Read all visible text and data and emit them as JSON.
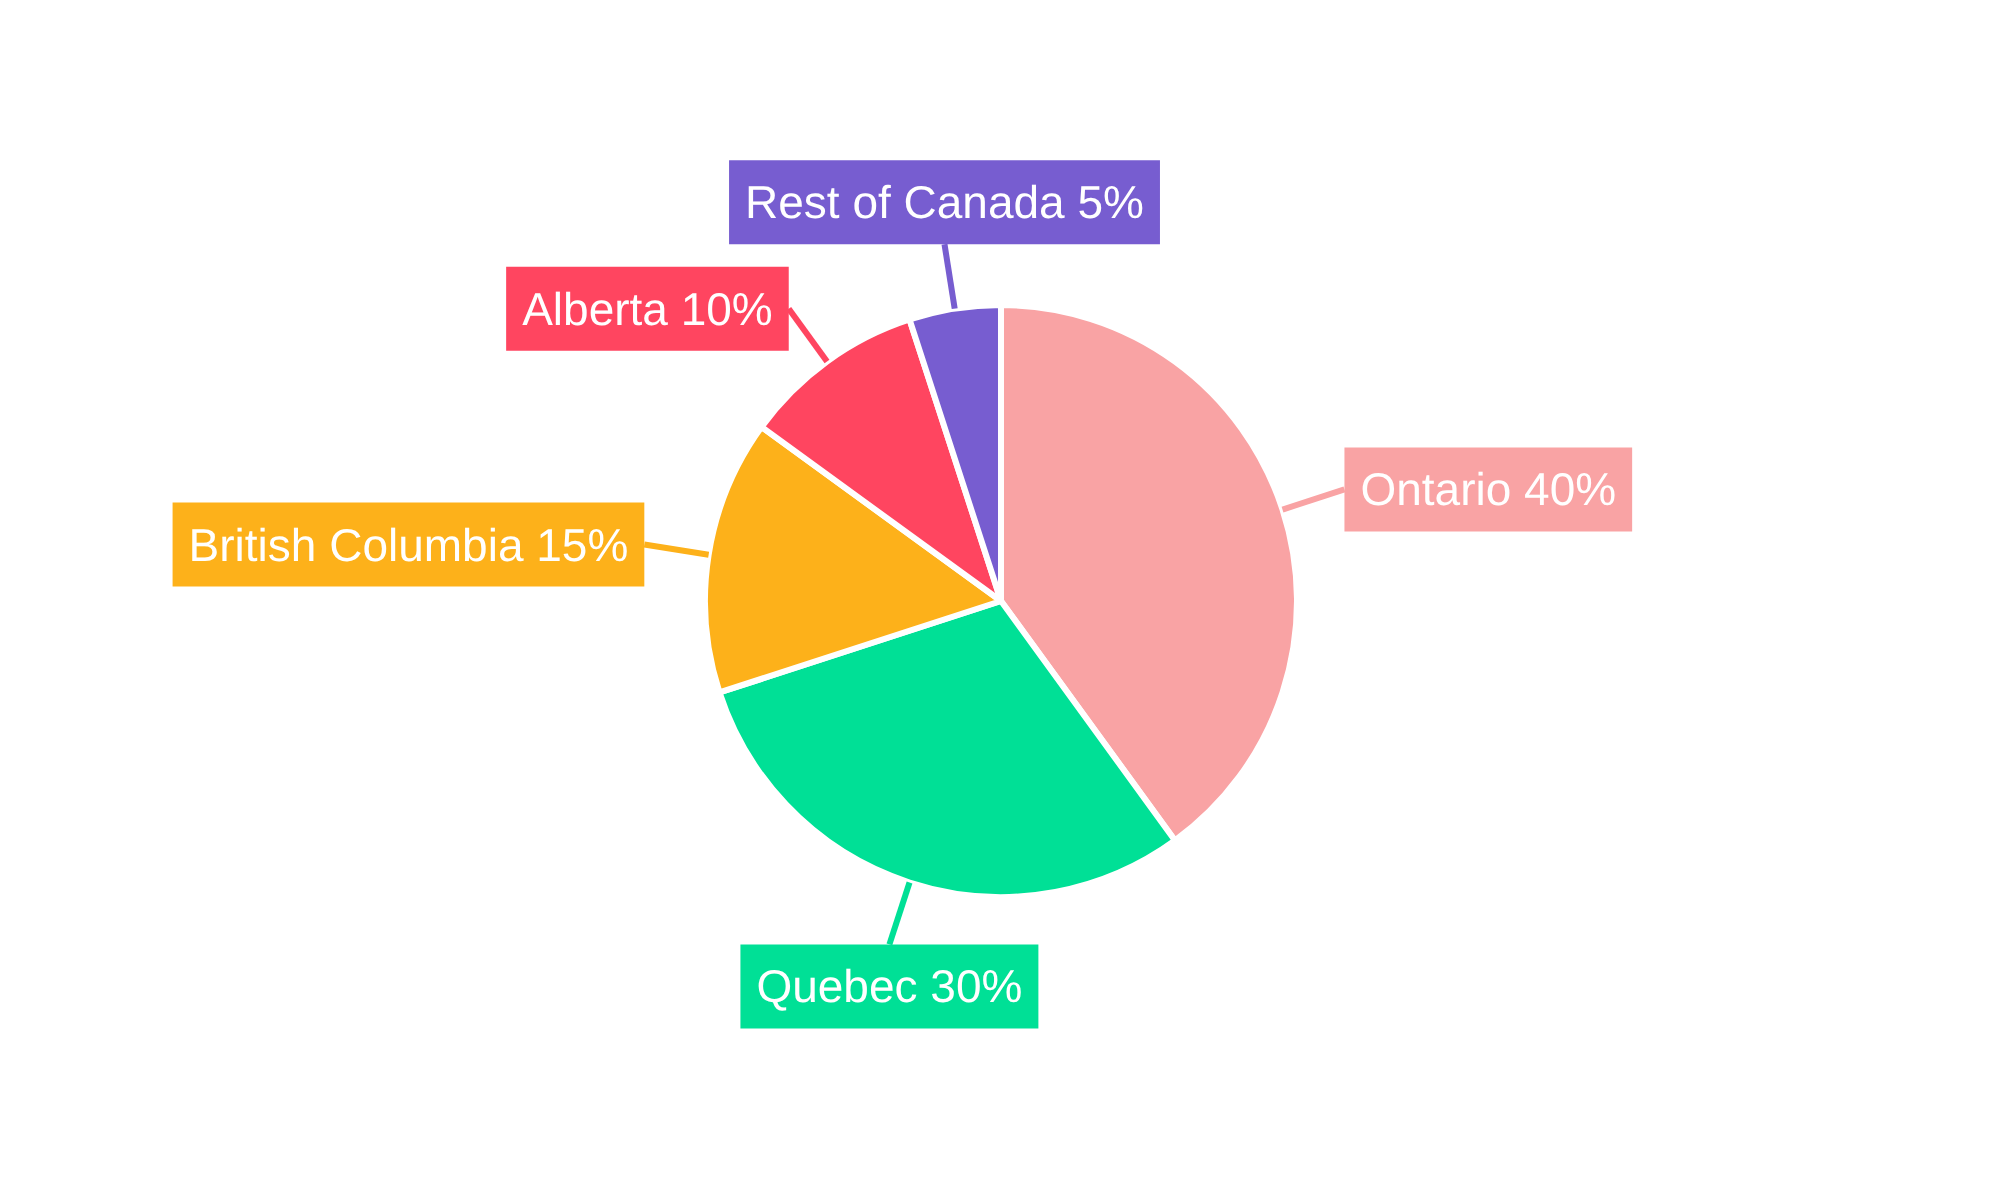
{
  "chart_data": {
    "type": "pie",
    "categories": [
      "Ontario",
      "Quebec",
      "British Columbia",
      "Alberta",
      "Rest of Canada"
    ],
    "values": [
      40,
      30,
      15,
      10,
      5
    ],
    "colors": [
      "#f9a3a4",
      "#00e096",
      "#fdb11a",
      "#ff4560",
      "#775dd0"
    ],
    "value_labels": [
      "40%",
      "30%",
      "15%",
      "10%",
      "5%"
    ]
  }
}
